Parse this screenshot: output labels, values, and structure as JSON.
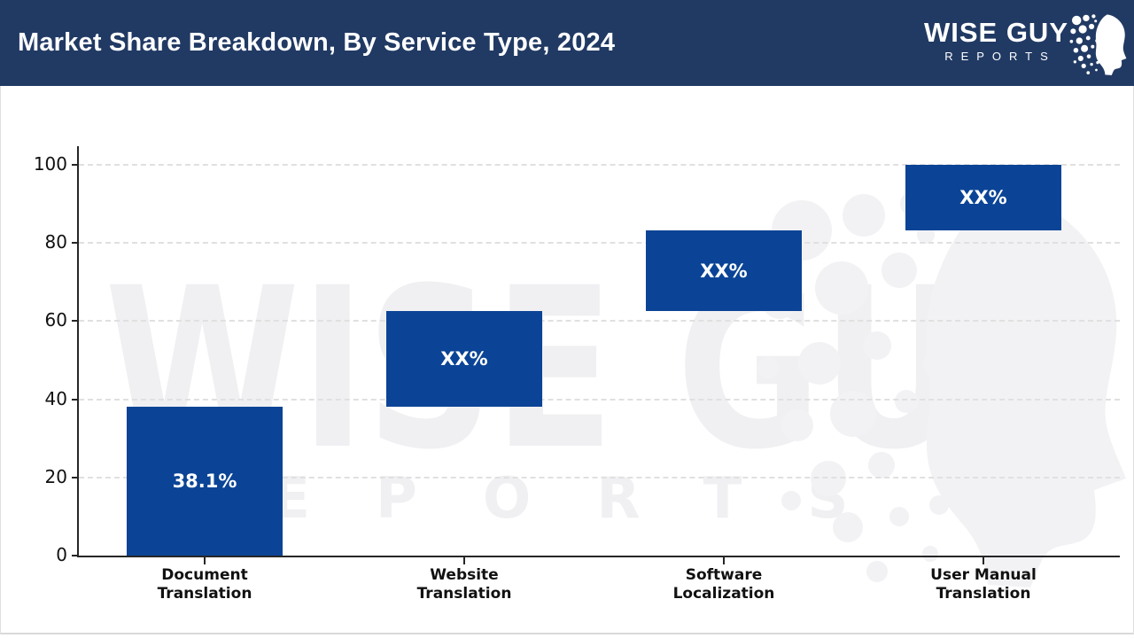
{
  "header": {
    "bg_color": "#213a64",
    "title": "Market Share Breakdown, By Service Type, 2024",
    "logo": {
      "name": "WISE GUY",
      "sub": "REPORTS"
    }
  },
  "watermark": {
    "big": "WISE GUY",
    "small": "REPORTS"
  },
  "chart_data": {
    "type": "bar",
    "variant": "waterfall",
    "title": "Market Share Breakdown, By Service Type, 2024",
    "categories": [
      {
        "line1": "Document",
        "line2": "Translation"
      },
      {
        "line1": "Website",
        "line2": "Translation"
      },
      {
        "line1": "Software",
        "line2": "Localization"
      },
      {
        "line1": "User Manual",
        "line2": "Translation"
      }
    ],
    "bars": [
      {
        "start": 0,
        "end": 38.1,
        "label": "38.1%"
      },
      {
        "start": 38.1,
        "end": 62.6,
        "label": "XX%"
      },
      {
        "start": 62.6,
        "end": 83.2,
        "label": "XX%"
      },
      {
        "start": 83.2,
        "end": 100,
        "label": "XX%"
      }
    ],
    "ylim": [
      0,
      100
    ],
    "yticks": [
      0,
      20,
      40,
      60,
      80,
      100
    ],
    "xlabel": "",
    "ylabel": "",
    "grid": {
      "show": true,
      "style": "dashed",
      "color": "#e0e0e0"
    },
    "legend": null,
    "bar_color": "#0b4496",
    "bar_label_color": "#ffffff"
  }
}
